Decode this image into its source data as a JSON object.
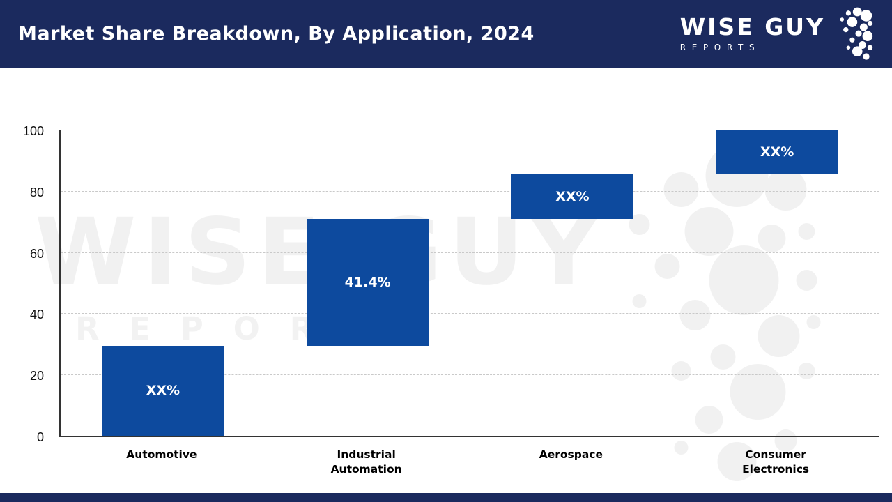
{
  "header": {
    "title": "Market Share Breakdown, By Application, 2024",
    "brand": {
      "line1": "WISE GUY",
      "line2": "REPORTS"
    }
  },
  "watermark": {
    "line1": "WISE GUY",
    "line2": "REPORTS"
  },
  "colors": {
    "header_bg": "#1b2a5e",
    "bar_blue": "#0d4a9e",
    "axis": "#333333",
    "gridline": "#c9c9c9"
  },
  "chart_data": {
    "type": "bar",
    "subtype": "waterfall",
    "title": "Market Share Breakdown, By Application, 2024",
    "xlabel": "",
    "ylabel": "",
    "ylim": [
      0,
      100
    ],
    "yticks": [
      0,
      20,
      40,
      60,
      80,
      100
    ],
    "grid": true,
    "legend": "none",
    "bar_color": "#0d4a9e",
    "label_color": "#ffffff",
    "categories": [
      "Automotive",
      "Industrial Automation",
      "Aerospace",
      "Consumer Electronics"
    ],
    "segments": [
      {
        "category": "Automotive",
        "start": 0,
        "end": 29.5,
        "value": 29.5,
        "label": "XX%"
      },
      {
        "category": "Industrial Automation",
        "start": 29.5,
        "end": 70.9,
        "value": 41.4,
        "label": "41.4%"
      },
      {
        "category": "Aerospace",
        "start": 70.9,
        "end": 85.4,
        "value": 14.5,
        "label": "XX%"
      },
      {
        "category": "Consumer Electronics",
        "start": 85.4,
        "end": 100,
        "value": 14.6,
        "label": "XX%"
      }
    ]
  }
}
